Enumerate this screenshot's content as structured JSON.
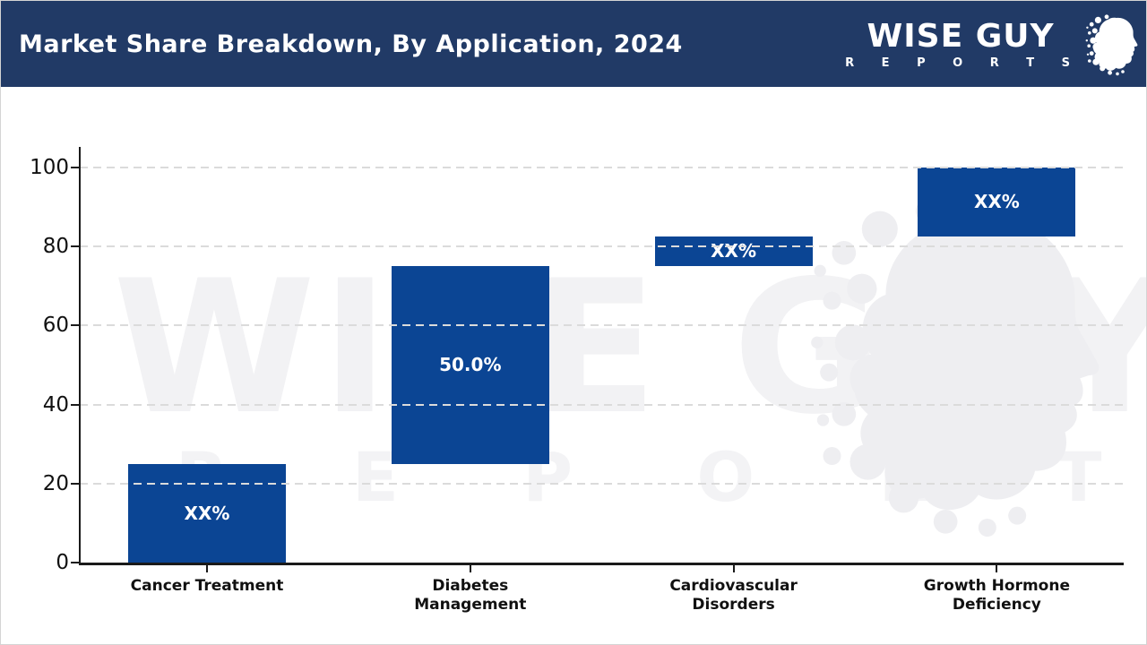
{
  "header": {
    "title": "Market Share Breakdown, By Application, 2024",
    "logo": {
      "line1": "WISE GUY",
      "line2": "R E P O R T S"
    }
  },
  "watermark": {
    "line1": "WISE GUY",
    "line2": "R E P O R T S"
  },
  "colors": {
    "header_bg": "#213a66",
    "bar": "#0b4594",
    "bar_label": "#ffffff",
    "gridline": "#dbdbdb",
    "axis": "#1a1a1a",
    "watermark": "#f2f2f4"
  },
  "chart_data": {
    "type": "bar",
    "subtype": "floating-segment-waterfall",
    "title": "Market Share Breakdown, By Application, 2024",
    "categories": [
      "Cancer Treatment",
      "Diabetes Management",
      "Cardiovascular Disorders",
      "Growth Hormone Deficiency"
    ],
    "series": [
      {
        "name": "Market Share",
        "segments": [
          {
            "category": "Cancer Treatment",
            "start": 0,
            "end": 25,
            "label": "XX%"
          },
          {
            "category": "Diabetes Management",
            "start": 25,
            "end": 75,
            "label": "50.0%"
          },
          {
            "category": "Cardiovascular Disorders",
            "start": 75,
            "end": 82.5,
            "label": "XX%"
          },
          {
            "category": "Growth Hormone Deficiency",
            "start": 82.5,
            "end": 100,
            "label": "XX%"
          }
        ]
      }
    ],
    "xlabel": "",
    "ylabel": "",
    "ylim": [
      0,
      100
    ],
    "yticks": [
      0,
      20,
      40,
      60,
      80,
      100
    ],
    "grid": "horizontal-dashed",
    "gridlines_above_bars": true,
    "legend": "none"
  }
}
